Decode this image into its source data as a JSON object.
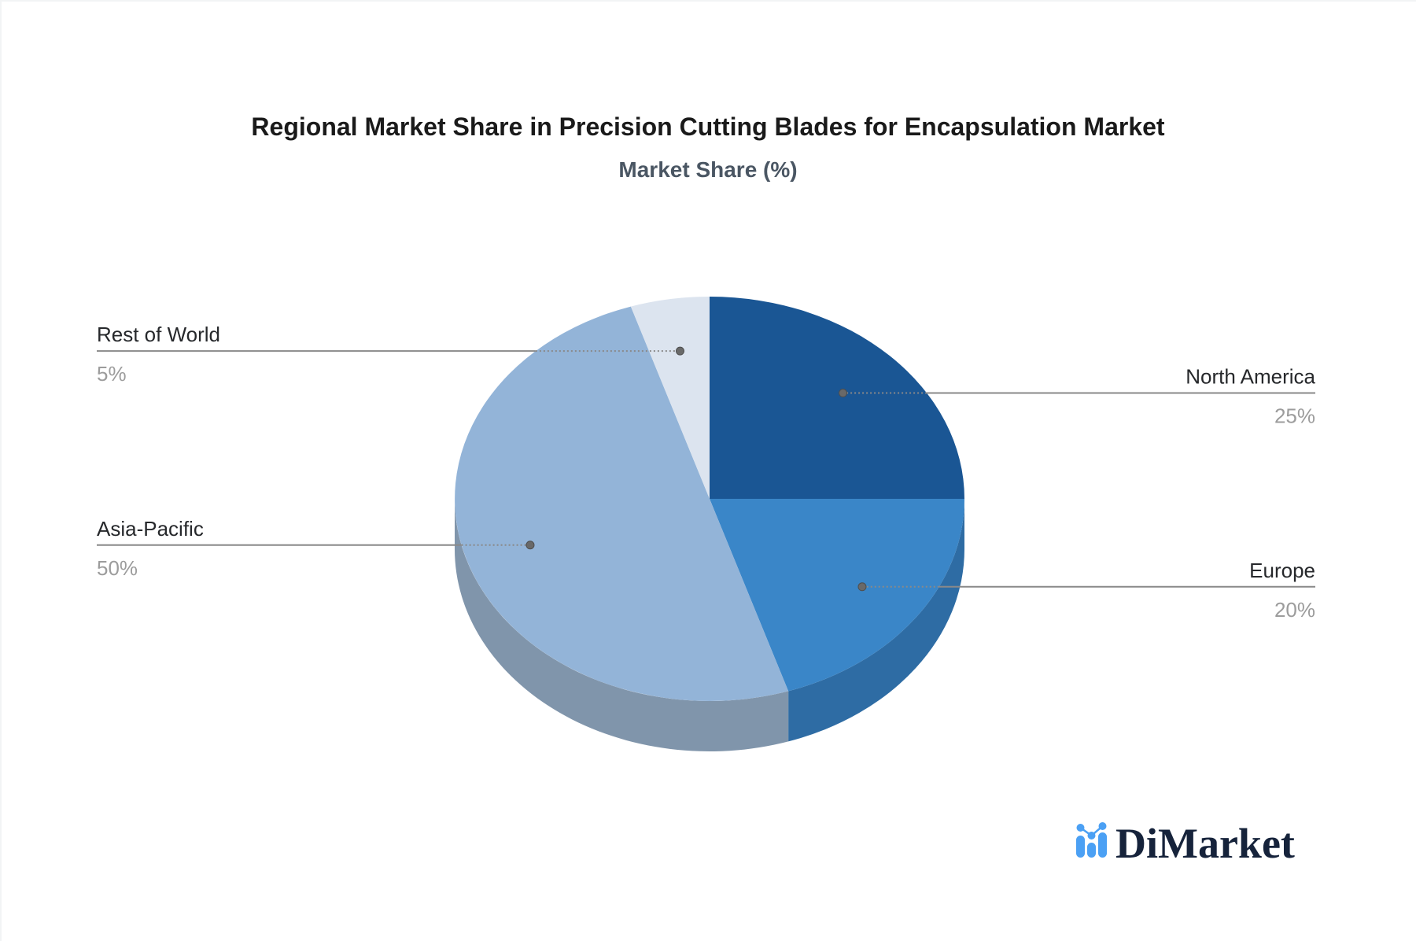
{
  "title": "Regional Market Share in Precision Cutting Blades for Encapsulation Market",
  "subtitle": "Market Share (%)",
  "chart_data": {
    "type": "pie",
    "style": "3d",
    "unit": "%",
    "start_angle_deg": 0,
    "direction": "clockwise",
    "legend_position": "callout-labels",
    "grid": false,
    "labels": [
      "North America",
      "Europe",
      "Asia-Pacific",
      "Rest of World"
    ],
    "values": [
      25,
      20,
      50,
      5
    ],
    "display_values": [
      "25%",
      "20%",
      "50%",
      "5%"
    ],
    "colors": [
      "#1A5694",
      "#3A86C8",
      "#93B4D8",
      "#DCE4EF"
    ],
    "side_colors": [
      "#14477C",
      "#2E6CA4",
      "#8095AB",
      "#BCC8D8"
    ],
    "callout_line_color": "#898989",
    "callout_dot_color": "#696969",
    "label_color": "#26282b",
    "value_color": "#9c9c9c"
  },
  "logo": {
    "text": "DiMarket",
    "icon": "bar-chart-sparkline-icon",
    "icon_color": "#4BA0F4",
    "text_color": "#16233b"
  }
}
